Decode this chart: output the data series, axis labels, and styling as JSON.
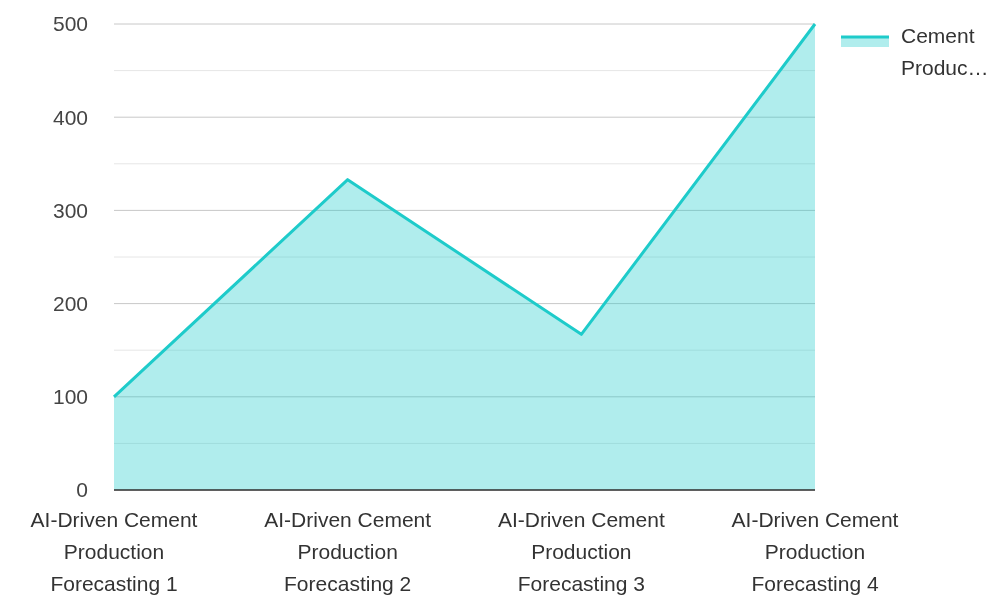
{
  "chart_data": {
    "type": "area",
    "categories": [
      "AI-Driven Cement Production Forecasting 1",
      "AI-Driven Cement Production Forecasting 2",
      "AI-Driven Cement Production Forecasting 3",
      "AI-Driven Cement Production Forecasting 4"
    ],
    "series": [
      {
        "name": "Cement Produc…",
        "color": "#1ecbca",
        "values": [
          100,
          333,
          167,
          500
        ]
      }
    ],
    "ylim": [
      0,
      500
    ],
    "yticks": [
      0,
      {
        "value": 50,
        "label": null
      },
      100,
      {
        "value": 150,
        "label": null
      },
      200,
      {
        "value": 250,
        "label": null
      },
      300,
      {
        "value": 350,
        "label": null
      },
      400,
      {
        "value": 450,
        "label": null
      },
      500
    ],
    "grid": "y",
    "legend": "top right"
  }
}
